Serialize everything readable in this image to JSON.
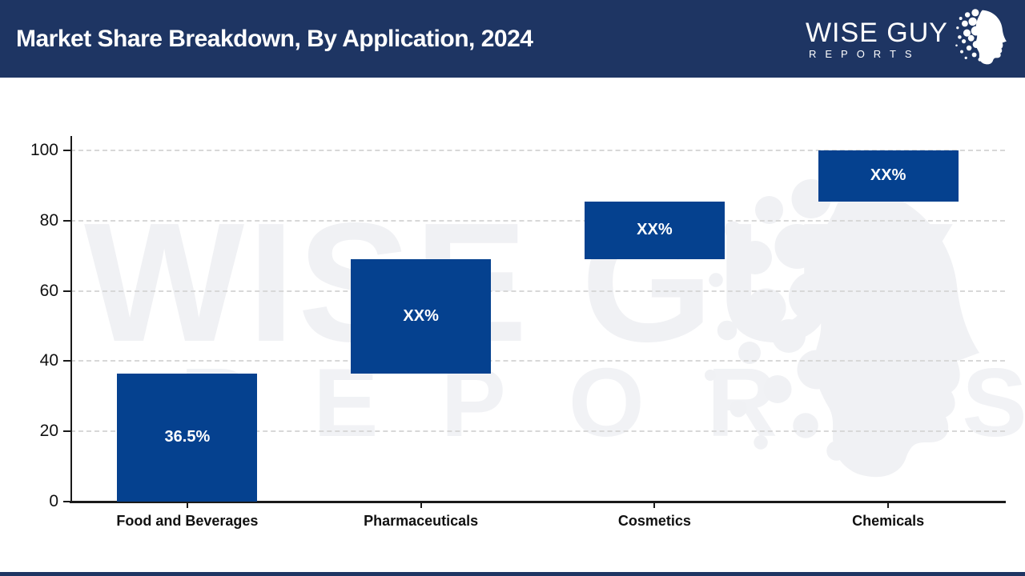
{
  "header": {
    "title": "Market Share Breakdown, By Application, 2024",
    "bg_color": "#1e3563",
    "logo": {
      "line1": "WISE GUY",
      "line2": "REPORTS",
      "icon": "head-profile-dots-icon"
    }
  },
  "watermark": {
    "line1": "WISE GUY",
    "line2": "REPORTS",
    "icon": "head-profile-dots-icon"
  },
  "chart_data": {
    "type": "bar",
    "subtype": "waterfall",
    "title": "Market Share Breakdown, By Application, 2024",
    "categories": [
      "Food and Beverages",
      "Pharmaceuticals",
      "Cosmetics",
      "Chemicals"
    ],
    "segments": [
      {
        "category": "Food and Beverages",
        "start": 0,
        "end": 36.5,
        "value": 36.5,
        "label": "36.5%"
      },
      {
        "category": "Pharmaceuticals",
        "start": 36.5,
        "end": 69,
        "value": 32.5,
        "label": "XX%"
      },
      {
        "category": "Cosmetics",
        "start": 69,
        "end": 85.5,
        "value": 16.5,
        "label": "XX%"
      },
      {
        "category": "Chemicals",
        "start": 85.5,
        "end": 100,
        "value": 14.5,
        "label": "XX%"
      }
    ],
    "y_ticks": [
      0,
      20,
      40,
      60,
      80,
      100
    ],
    "ylim": [
      0,
      104
    ],
    "xlabel": "",
    "ylabel": "",
    "grid": "horizontal-dashed",
    "legend": "none",
    "bar_color": "#05418f",
    "bar_label_color": "#ffffff",
    "axis_color": "#1a1a1a",
    "grid_color": "#d8d8d8"
  }
}
